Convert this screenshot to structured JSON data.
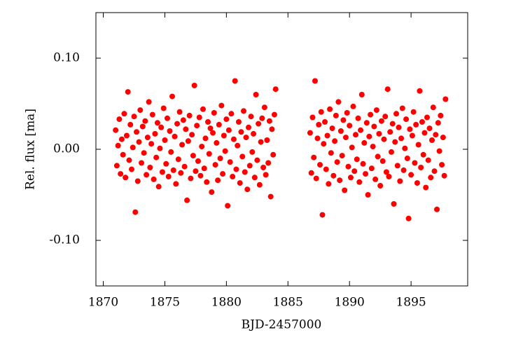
{
  "chart_data": {
    "type": "scatter",
    "xlabel": "BJD-2457000",
    "ylabel": "Rel. flux [ma]",
    "color": "#ff0000",
    "xlim": [
      1869.4,
      1899.6
    ],
    "ylim": [
      -0.15,
      0.15
    ],
    "xticks": [
      1870,
      1875,
      1880,
      1885,
      1890,
      1895
    ],
    "yticks": [
      {
        "value": -0.1,
        "label": "-0.10"
      },
      {
        "value": 0,
        "label": "0.00"
      },
      {
        "value": 0.1,
        "label": "0.10"
      }
    ],
    "x": [
      1871,
      1871.1,
      1871.2,
      1871.3,
      1871.4,
      1871.5,
      1871.6,
      1871.7,
      1871.8,
      1871.9,
      1872,
      1872.1,
      1872.2,
      1872.3,
      1872.4,
      1872.5,
      1872.6,
      1872.7,
      1872.8,
      1872.9,
      1873,
      1873.1,
      1873.2,
      1873.3,
      1873.4,
      1873.5,
      1873.6,
      1873.7,
      1873.8,
      1873.9,
      1874,
      1874.1,
      1874.2,
      1874.3,
      1874.4,
      1874.5,
      1874.6,
      1874.7,
      1874.8,
      1874.9,
      1875,
      1875.1,
      1875.2,
      1875.3,
      1875.4,
      1875.5,
      1875.6,
      1875.7,
      1875.8,
      1875.9,
      1876,
      1876.1,
      1876.2,
      1876.3,
      1876.4,
      1876.5,
      1876.6,
      1876.7,
      1876.8,
      1876.9,
      1877,
      1877.1,
      1877.2,
      1877.3,
      1877.4,
      1877.5,
      1877.6,
      1877.7,
      1877.8,
      1877.9,
      1878,
      1878.1,
      1878.2,
      1878.3,
      1878.4,
      1878.5,
      1878.6,
      1878.7,
      1878.8,
      1878.9,
      1879,
      1879.1,
      1879.2,
      1879.3,
      1879.4,
      1879.5,
      1879.6,
      1879.7,
      1879.8,
      1879.9,
      1880,
      1880.1,
      1880.2,
      1880.3,
      1880.4,
      1880.5,
      1880.6,
      1880.7,
      1880.8,
      1880.9,
      1881,
      1881.1,
      1881.2,
      1881.3,
      1881.4,
      1881.5,
      1881.6,
      1881.7,
      1881.8,
      1881.9,
      1882,
      1882.1,
      1882.2,
      1882.3,
      1882.4,
      1882.5,
      1882.6,
      1882.7,
      1882.8,
      1882.9,
      1883,
      1883.1,
      1883.2,
      1883.3,
      1883.4,
      1883.5,
      1883.6,
      1883.7,
      1883.8,
      1883.9,
      1884,
      1886.8,
      1886.9,
      1887,
      1887.1,
      1887.2,
      1887.3,
      1887.4,
      1887.5,
      1887.6,
      1887.7,
      1887.8,
      1887.9,
      1888,
      1888.1,
      1888.2,
      1888.3,
      1888.4,
      1888.5,
      1888.6,
      1888.7,
      1888.8,
      1888.9,
      1889,
      1889.1,
      1889.2,
      1889.3,
      1889.4,
      1889.5,
      1889.6,
      1889.7,
      1889.8,
      1889.9,
      1890,
      1890.1,
      1890.2,
      1890.3,
      1890.4,
      1890.5,
      1890.6,
      1890.7,
      1890.8,
      1890.9,
      1891,
      1891.1,
      1891.2,
      1891.3,
      1891.4,
      1891.5,
      1891.6,
      1891.7,
      1891.8,
      1891.9,
      1892,
      1892.1,
      1892.2,
      1892.3,
      1892.4,
      1892.5,
      1892.6,
      1892.7,
      1892.8,
      1892.9,
      1893,
      1893.1,
      1893.2,
      1893.3,
      1893.4,
      1893.5,
      1893.6,
      1893.7,
      1893.8,
      1893.9,
      1894,
      1894.1,
      1894.2,
      1894.3,
      1894.4,
      1894.5,
      1894.6,
      1894.7,
      1894.8,
      1894.9,
      1895,
      1895.1,
      1895.2,
      1895.3,
      1895.4,
      1895.5,
      1895.6,
      1895.7,
      1895.8,
      1895.9,
      1896,
      1896.1,
      1896.2,
      1896.3,
      1896.4,
      1896.5,
      1896.6,
      1896.7,
      1896.8,
      1896.9,
      1897,
      1897.1,
      1897.2,
      1897.3,
      1897.4,
      1897.5,
      1897.6,
      1897.7,
      1897.8
    ],
    "values": [
      0.021,
      -0.018,
      0.004,
      0.033,
      -0.027,
      0.011,
      -0.006,
      0.039,
      -0.031,
      0.015,
      0.063,
      -0.012,
      0.027,
      -0.022,
      0.002,
      0.036,
      -0.069,
      0.019,
      -0.035,
      0.008,
      0.043,
      -0.015,
      0.025,
      -0.004,
      0.031,
      -0.028,
      0.013,
      0.052,
      -0.02,
      0.006,
      0.038,
      -0.033,
      0.017,
      -0.009,
      0.029,
      -0.041,
      0.001,
      0.024,
      -0.025,
      0.045,
      0.01,
      -0.016,
      0.034,
      -0.03,
      0.02,
      -0.003,
      0.058,
      -0.023,
      0.014,
      -0.038,
      0.028,
      -0.011,
      0.041,
      -0.026,
      0.005,
      0.032,
      -0.019,
      0.022,
      -0.056,
      0.009,
      0.037,
      -0.032,
      0.016,
      -0.007,
      0.07,
      -0.024,
      0.026,
      -0.013,
      0.035,
      -0.029,
      0.003,
      0.044,
      -0.021,
      0.012,
      -0.036,
      0.03,
      -0.005,
      0.023,
      -0.047,
      0.018,
      0.04,
      -0.017,
      0.007,
      -0.034,
      0.027,
      -0.01,
      0.048,
      -0.027,
      0.015,
      -0.002,
      0.033,
      -0.062,
      0.021,
      -0.014,
      0.039,
      -0.03,
      0.011,
      0.075,
      -0.022,
      0.004,
      0.03,
      -0.037,
      0.019,
      -0.008,
      0.042,
      -0.025,
      0.013,
      -0.044,
      0.024,
      -0.018,
      0.036,
      -0.003,
      0.017,
      -0.031,
      0.06,
      -0.012,
      0.028,
      -0.039,
      0.008,
      0.034,
      -0.02,
      0.046,
      -0.028,
      0.01,
      -0.015,
      0.031,
      -0.052,
      0.022,
      -0.006,
      0.038,
      0.066,
      0.018,
      -0.026,
      0.035,
      -0.009,
      0.075,
      -0.032,
      0.012,
      0.027,
      -0.017,
      0.041,
      -0.072,
      0.006,
      0.03,
      -0.022,
      0.015,
      -0.038,
      0.044,
      -0.004,
      0.023,
      -0.029,
      0.009,
      0.037,
      -0.014,
      0.052,
      -0.034,
      0.02,
      -0.007,
      0.032,
      -0.045,
      0.013,
      0.04,
      -0.019,
      0.026,
      -0.031,
      0.002,
      0.047,
      -0.024,
      0.016,
      -0.011,
      0.034,
      -0.036,
      0.021,
      0.06,
      -0.016,
      0.007,
      -0.027,
      0.029,
      -0.05,
      0.014,
      0.038,
      -0.021,
      0.003,
      0.025,
      -0.033,
      0.043,
      -0.008,
      0.017,
      -0.04,
      0.031,
      -0.013,
      0.011,
      0.036,
      -0.025,
      0.066,
      -0.03,
      0.019,
      -0.003,
      0.028,
      -0.06,
      0.008,
      0.039,
      -0.018,
      0.024,
      -0.035,
      0.012,
      0.045,
      -0.023,
      0.001,
      0.033,
      -0.01,
      -0.076,
      0.022,
      -0.028,
      0.015,
      0.041,
      -0.015,
      0.027,
      -0.037,
      0.005,
      0.064,
      -0.02,
      0.03,
      -0.006,
      0.018,
      -0.042,
      0.035,
      -0.012,
      0.023,
      -0.031,
      0.01,
      0.046,
      -0.024,
      0.016,
      -0.066,
      0.029,
      -0.002,
      0.037,
      -0.017,
      0.013,
      -0.029,
      0.055
    ]
  }
}
